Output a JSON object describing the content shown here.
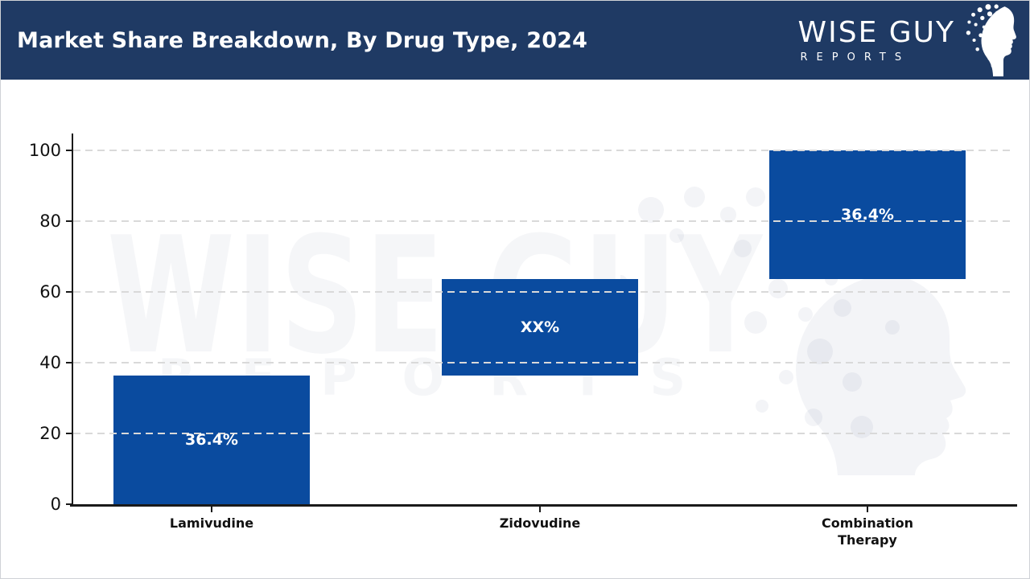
{
  "header": {
    "title": "Market Share Breakdown, By Drug Type, 2024",
    "logo": {
      "line1": "WISE GUY",
      "line2": "REPORTS"
    }
  },
  "watermark": {
    "line1": "WISE GUY",
    "line2": "REPORTS"
  },
  "colors": {
    "header_bg": "#1f3a64",
    "bar": "#0a4b9f",
    "grid": "#d9d9d9",
    "axis": "#1a1a1a",
    "bar_label": "#ffffff"
  },
  "chart_data": {
    "type": "bar",
    "subtype": "floating-segment-bars",
    "title": "Market Share Breakdown, By Drug Type, 2024",
    "categories": [
      "Lamivudine",
      "Zidovudine",
      "Combination Therapy"
    ],
    "series": [
      {
        "name": "Market Share",
        "segments": [
          {
            "category": "Lamivudine",
            "from": 0,
            "to": 36.4,
            "label": "36.4%"
          },
          {
            "category": "Zidovudine",
            "from": 36.4,
            "to": 63.6,
            "label": "XX%"
          },
          {
            "category": "Combination Therapy",
            "from": 63.6,
            "to": 100,
            "label": "36.4%"
          }
        ]
      }
    ],
    "xlabel": "",
    "ylabel": "",
    "ylim": [
      0,
      100
    ],
    "yticks": [
      0,
      20,
      40,
      60,
      80,
      100
    ],
    "grid": "horizontal-dashed",
    "legend": "none"
  }
}
